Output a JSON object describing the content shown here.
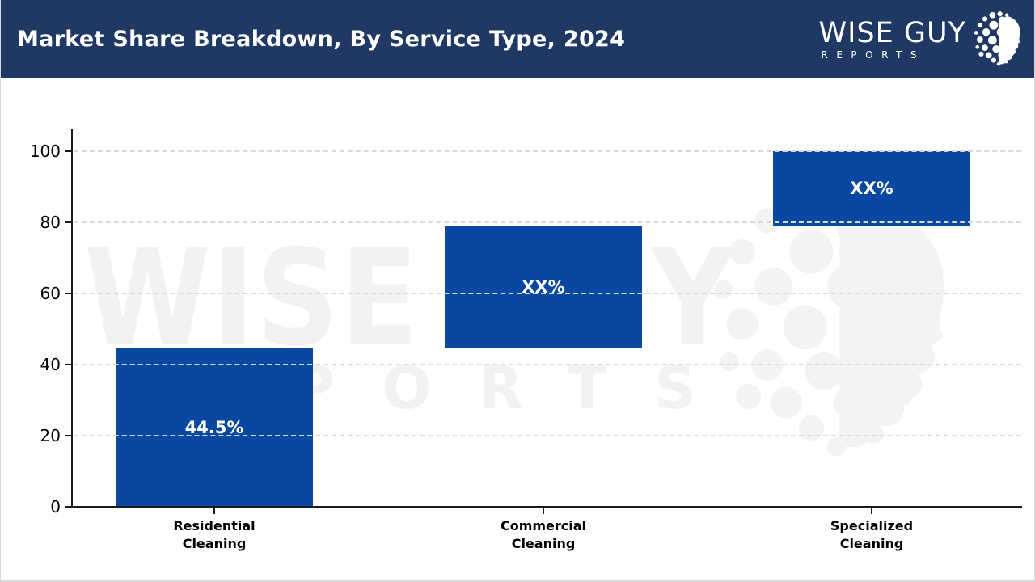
{
  "header": {
    "title": "Market Share Breakdown, By Service Type, 2024",
    "logo_line1": "WISE GUY",
    "logo_line2": "REPORTS"
  },
  "watermark": {
    "line1": "WISE GUY",
    "line2": "REPORTS"
  },
  "colors": {
    "header_bg": "#1F3864",
    "bar": "#0847A2",
    "axis": "#1A1A1A",
    "grid": "#D9D9D9",
    "bar_label_text": "#FFFFFF",
    "watermark": "#F2F2F2"
  },
  "chart_data": {
    "type": "bar",
    "subtype": "floating-waterfall",
    "title": "Market Share Breakdown, By Service Type, 2024",
    "categories": [
      {
        "line1": "Residential",
        "line2": "Cleaning"
      },
      {
        "line1": "Commercial",
        "line2": "Cleaning"
      },
      {
        "line1": "Specialized",
        "line2": "Cleaning"
      }
    ],
    "series": [
      {
        "name": "Market Share (%)",
        "segments": [
          {
            "category": "Residential Cleaning",
            "start": 0,
            "end": 44.5,
            "label": "44.5%"
          },
          {
            "category": "Commercial Cleaning",
            "start": 44.5,
            "end": 79,
            "label": "XX%"
          },
          {
            "category": "Specialized Cleaning",
            "start": 79,
            "end": 100,
            "label": "XX%"
          }
        ]
      }
    ],
    "ylim": [
      0,
      100
    ],
    "yticks": [
      0,
      20,
      40,
      60,
      80,
      100
    ],
    "grid": "dashed-horizontal",
    "legend": "none"
  }
}
